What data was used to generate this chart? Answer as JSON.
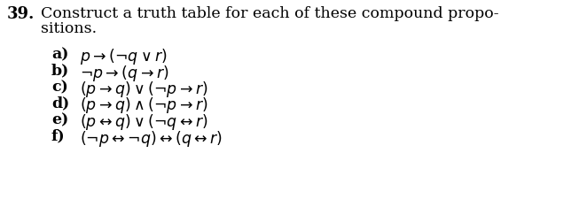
{
  "background_color": "#ffffff",
  "number": "39.",
  "title_line1": "Construct a truth table for each of these compound propo-",
  "title_line2": "sitions.",
  "items": [
    {
      "label": "a)",
      "formula": "$p \\rightarrow (\\neg q \\vee r)$"
    },
    {
      "label": "b)",
      "formula": "$\\neg p \\rightarrow (q \\rightarrow r)$"
    },
    {
      "label": "c)",
      "formula": "$(p \\rightarrow q) \\vee (\\neg p \\rightarrow r)$"
    },
    {
      "label": "d)",
      "formula": "$(p \\rightarrow q) \\wedge (\\neg p \\rightarrow r)$"
    },
    {
      "label": "e)",
      "formula": "$(p \\leftrightarrow q) \\vee (\\neg q \\leftrightarrow r)$"
    },
    {
      "label": "f)",
      "formula": "$(\\neg p \\leftrightarrow \\neg q) \\leftrightarrow (q \\leftrightarrow r)$"
    }
  ],
  "number_fontsize": 13,
  "title_fontsize": 12.5,
  "item_label_fontsize": 12.5,
  "item_formula_fontsize": 12.5,
  "text_color": "#000000",
  "figwidth": 6.44,
  "figheight": 2.25,
  "dpi": 100
}
